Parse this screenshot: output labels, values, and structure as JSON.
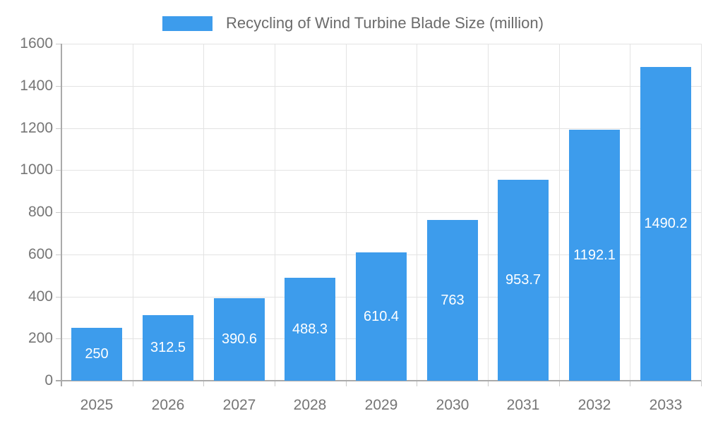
{
  "chart_data": {
    "type": "bar",
    "title": "Recycling of Wind Turbine Blade Size (million)",
    "categories": [
      "2025",
      "2026",
      "2027",
      "2028",
      "2029",
      "2030",
      "2031",
      "2032",
      "2033"
    ],
    "series": [
      {
        "name": "Recycling of Wind Turbine Blade Size (million)",
        "values": [
          250,
          312.5,
          390.6,
          488.3,
          610.4,
          763,
          953.7,
          1192.1,
          1490.2
        ]
      }
    ],
    "value_labels": [
      "250",
      "312.5",
      "390.6",
      "488.3",
      "610.4",
      "763",
      "953.7",
      "1192.1",
      "1490.2"
    ],
    "xlabel": "",
    "ylabel": "",
    "ylim": [
      0,
      1600
    ],
    "yticks": [
      0,
      200,
      400,
      600,
      800,
      1000,
      1200,
      1400,
      1600
    ],
    "grid": true,
    "legend_position": "top",
    "bar_label_position": "center"
  },
  "colors": {
    "bar": "#3d9cec",
    "grid_line": "#e3e3e3",
    "tick_line": "#c9c9c9",
    "axis_line": "#aaaaaa",
    "axis_label_text": "#757575",
    "title_text": "#6b6b6b",
    "bar_label_text": "#ffffff",
    "background": "#ffffff"
  }
}
